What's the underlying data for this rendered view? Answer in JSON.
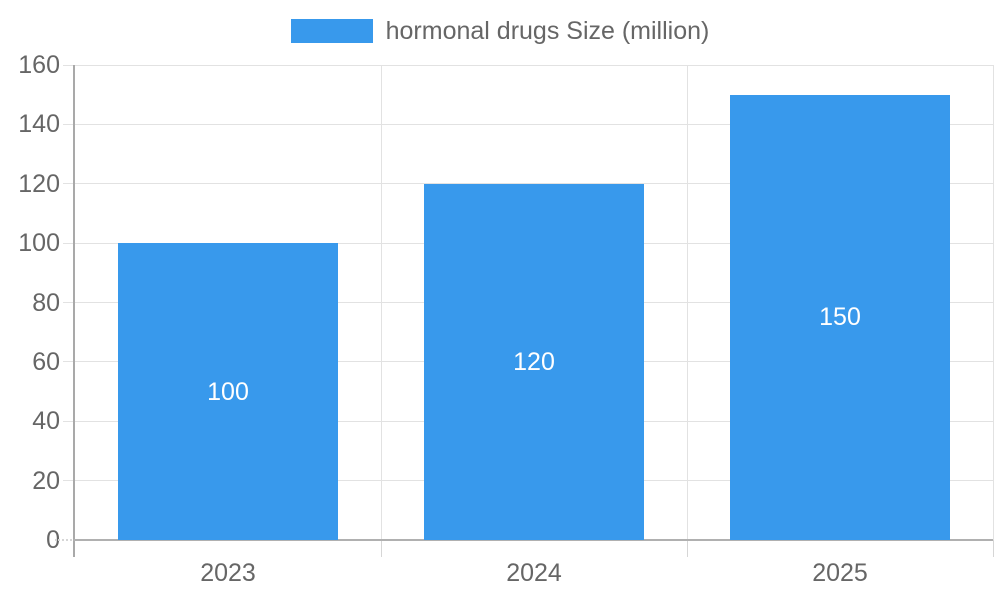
{
  "page": {
    "background": "#ffffff"
  },
  "legend": {
    "label": "hormonal drugs Size (million)",
    "swatch_color": "#3899ec",
    "text_color": "#666666",
    "position": "top-center"
  },
  "chart_data": {
    "type": "bar",
    "title": "",
    "categories": [
      "2023",
      "2024",
      "2025"
    ],
    "series": [
      {
        "name": "hormonal drugs Size (million)",
        "values": [
          100,
          120,
          150
        ],
        "color": "#3899ec"
      }
    ],
    "data_labels": {
      "show": true,
      "color": "#ffffff",
      "position": "center",
      "values": [
        "100",
        "120",
        "150"
      ]
    },
    "xlabel": "",
    "ylabel": "",
    "ylim": [
      0,
      160
    ],
    "ytick_step": 20,
    "yticks": [
      0,
      20,
      40,
      60,
      80,
      100,
      120,
      140,
      160
    ],
    "grid": true,
    "legend_position": "top-center",
    "axis_text_color": "#666666",
    "gridline_color": "#e2e2e2",
    "axis_line_color": "#a9a9a9",
    "baseline_color": "#b0b0b0",
    "minor_tick_color": "#d6d6d6"
  }
}
